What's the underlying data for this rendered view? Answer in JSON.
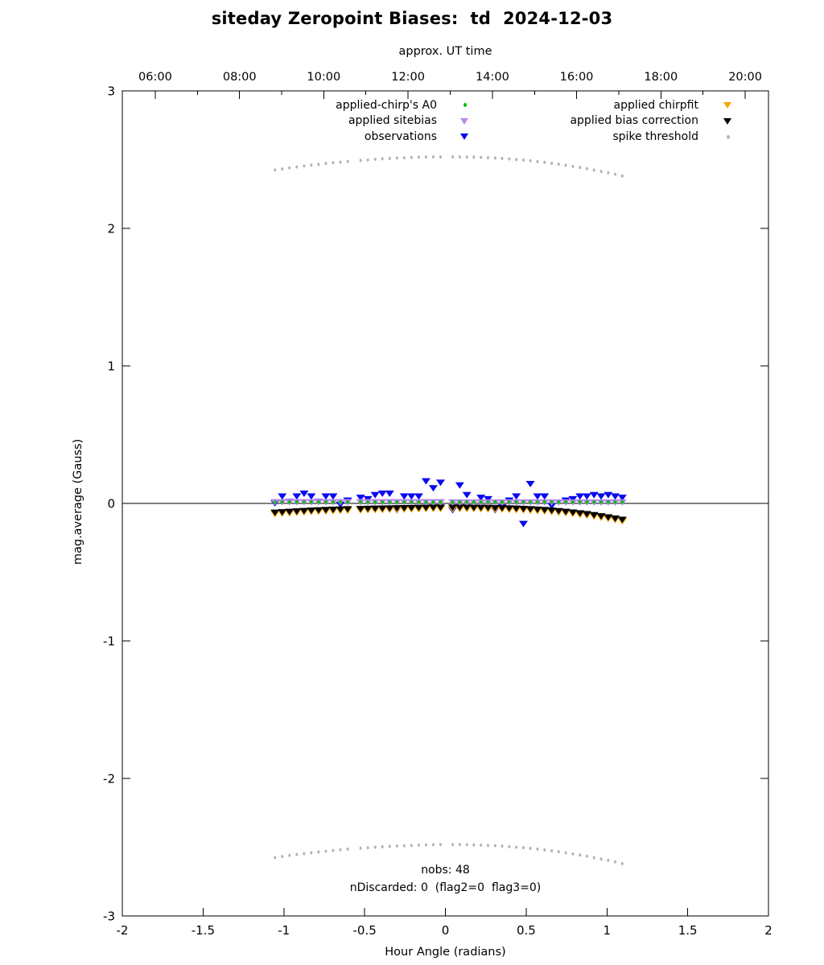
{
  "title": "siteday Zeropoint Biases:  td  2024-12-03",
  "axes": {
    "x2_label": "approx. UT time",
    "x_label": "Hour Angle (radians)",
    "y_label": "mag.average (Gauss)"
  },
  "annotations": {
    "nobs": "nobs: 48",
    "ndiscarded": "nDiscarded: 0  (flag2=0  flag3=0)"
  },
  "legend": {
    "columns": [
      {
        "items": [
          {
            "label": "applied-chirp's A0",
            "marker": "dot",
            "color": "#00c000"
          },
          {
            "label": "applied sitebias",
            "marker": "triangle-down",
            "color": "#bb88ee"
          },
          {
            "label": "observations",
            "marker": "triangle-down",
            "color": "#0a0af0"
          }
        ]
      },
      {
        "items": [
          {
            "label": "applied chirpfit",
            "marker": "triangle-down",
            "color": "#f7a707"
          },
          {
            "label": "applied bias correction",
            "marker": "triangle-down",
            "color": "#000000"
          },
          {
            "label": "spike threshold",
            "marker": "dot",
            "color": "#b3b3b3"
          }
        ]
      }
    ]
  },
  "chart_data": {
    "type": "scatter",
    "title": "siteday Zeropoint Biases:  td  2024-12-03",
    "xlabel": "Hour Angle (radians)",
    "x2label": "approx. UT time",
    "ylabel": "mag.average (Gauss)",
    "xlim": [
      -2,
      2
    ],
    "ylim": [
      -3,
      3
    ],
    "grid": false,
    "zero_line": true,
    "legend_position": "top-inside-two-columns",
    "x_ticks": [
      -2,
      -1.5,
      -1,
      -0.5,
      0,
      0.5,
      1,
      1.5,
      2
    ],
    "x_tick_labels": [
      "-2",
      "-1.5",
      "-1",
      "-0.5",
      "0",
      "0.5",
      "1",
      "1.5",
      "2"
    ],
    "y_ticks": [
      -3,
      -2,
      -1,
      0,
      1,
      2,
      3
    ],
    "y_tick_labels": [
      "-3",
      "-2",
      "-1",
      "0",
      "1",
      "2",
      "3"
    ],
    "x2_ticks": [
      {
        "label": "06:00",
        "ha": -1.796
      },
      {
        "label": "08:00",
        "ha": -1.274
      },
      {
        "label": "10:00",
        "ha": -0.753
      },
      {
        "label": "12:00",
        "ha": -0.231
      },
      {
        "label": "14:00",
        "ha": 0.291
      },
      {
        "label": "16:00",
        "ha": 0.812
      },
      {
        "label": "18:00",
        "ha": 1.334
      },
      {
        "label": "20:00",
        "ha": 1.856
      }
    ],
    "x2_minor_ha": [
      -1.535,
      -1.013,
      -0.492,
      0.03,
      0.552,
      1.073,
      1.595
    ],
    "stats": {
      "nobs": 48,
      "nDiscarded": 0,
      "flag2": 0,
      "flag3": 0
    },
    "ha": [
      -1.055,
      -1.01,
      -0.965,
      -0.92,
      -0.875,
      -0.83,
      -0.785,
      -0.74,
      -0.695,
      -0.65,
      -0.605,
      -0.525,
      -0.48,
      -0.435,
      -0.39,
      -0.345,
      -0.3,
      -0.255,
      -0.21,
      -0.165,
      -0.12,
      -0.075,
      -0.03,
      0.045,
      0.089,
      0.133,
      0.176,
      0.22,
      0.264,
      0.308,
      0.351,
      0.395,
      0.439,
      0.483,
      0.526,
      0.57,
      0.614,
      0.658,
      0.701,
      0.745,
      0.789,
      0.833,
      0.876,
      0.92,
      0.964,
      1.008,
      1.051,
      1.095
    ],
    "series": [
      {
        "name": "spike threshold",
        "marker": "dot",
        "color": "#b3b3b3",
        "values_upper": [
          2.425,
          2.432,
          2.44,
          2.447,
          2.454,
          2.46,
          2.466,
          2.472,
          2.477,
          2.482,
          2.487,
          2.494,
          2.498,
          2.502,
          2.506,
          2.509,
          2.512,
          2.514,
          2.516,
          2.518,
          2.519,
          2.52,
          2.52,
          2.52,
          2.52,
          2.519,
          2.518,
          2.516,
          2.514,
          2.512,
          2.509,
          2.505,
          2.501,
          2.497,
          2.492,
          2.486,
          2.48,
          2.474,
          2.467,
          2.459,
          2.451,
          2.443,
          2.434,
          2.424,
          2.414,
          2.404,
          2.393,
          2.381
        ],
        "values_lower": [
          -2.575,
          -2.568,
          -2.56,
          -2.553,
          -2.547,
          -2.541,
          -2.535,
          -2.529,
          -2.524,
          -2.519,
          -2.514,
          -2.508,
          -2.504,
          -2.5,
          -2.497,
          -2.494,
          -2.491,
          -2.489,
          -2.487,
          -2.485,
          -2.483,
          -2.482,
          -2.481,
          -2.481,
          -2.481,
          -2.482,
          -2.483,
          -2.485,
          -2.487,
          -2.489,
          -2.492,
          -2.496,
          -2.5,
          -2.504,
          -2.509,
          -2.514,
          -2.52,
          -2.526,
          -2.533,
          -2.541,
          -2.549,
          -2.557,
          -2.566,
          -2.576,
          -2.586,
          -2.596,
          -2.607,
          -2.619
        ]
      },
      {
        "name": "observations",
        "marker": "triangle-down",
        "color": "#0a0af0",
        "values": [
          0.0,
          0.05,
          0.01,
          0.05,
          0.07,
          0.05,
          0.01,
          0.05,
          0.05,
          -0.01,
          0.02,
          0.04,
          0.03,
          0.06,
          0.07,
          0.07,
          -0.05,
          0.05,
          0.05,
          0.05,
          0.16,
          0.11,
          0.15,
          -0.05,
          0.13,
          0.06,
          -0.04,
          0.04,
          0.03,
          -0.05,
          -0.03,
          0.02,
          0.05,
          -0.15,
          0.14,
          0.05,
          0.05,
          -0.02,
          -0.06,
          0.02,
          0.03,
          0.05,
          0.05,
          0.06,
          0.05,
          0.06,
          0.05,
          0.04
        ]
      },
      {
        "name": "applied chirpfit",
        "marker": "triangle-down",
        "color": "#f7a707",
        "values": [
          -0.078,
          -0.075,
          -0.072,
          -0.069,
          -0.066,
          -0.063,
          -0.061,
          -0.059,
          -0.057,
          -0.055,
          -0.053,
          -0.052,
          -0.05,
          -0.049,
          -0.048,
          -0.047,
          -0.046,
          -0.045,
          -0.044,
          -0.043,
          -0.042,
          -0.041,
          -0.041,
          -0.041,
          -0.041,
          -0.041,
          -0.042,
          -0.042,
          -0.043,
          -0.044,
          -0.045,
          -0.047,
          -0.049,
          -0.051,
          -0.053,
          -0.056,
          -0.059,
          -0.063,
          -0.067,
          -0.072,
          -0.077,
          -0.083,
          -0.089,
          -0.096,
          -0.104,
          -0.112,
          -0.121,
          -0.13
        ]
      },
      {
        "name": "applied bias correction",
        "marker": "triangle-down",
        "color": "#000000",
        "values": [
          -0.068,
          -0.065,
          -0.062,
          -0.059,
          -0.056,
          -0.053,
          -0.051,
          -0.049,
          -0.047,
          -0.045,
          -0.043,
          -0.042,
          -0.04,
          -0.039,
          -0.038,
          -0.037,
          -0.036,
          -0.035,
          -0.034,
          -0.033,
          -0.032,
          -0.031,
          -0.031,
          -0.031,
          -0.031,
          -0.031,
          -0.032,
          -0.032,
          -0.033,
          -0.034,
          -0.035,
          -0.037,
          -0.039,
          -0.041,
          -0.043,
          -0.046,
          -0.049,
          -0.053,
          -0.057,
          -0.062,
          -0.067,
          -0.073,
          -0.079,
          -0.086,
          -0.094,
          -0.102,
          -0.111,
          -0.12
        ]
      },
      {
        "name": "applied sitebias",
        "marker": "triangle-down",
        "color": "#bb88ee",
        "values": [
          0.008,
          0.008,
          0.008,
          0.008,
          0.008,
          0.008,
          0.008,
          0.008,
          0.008,
          0.008,
          0.008,
          0.008,
          0.008,
          0.008,
          0.008,
          0.008,
          0.008,
          0.008,
          0.008,
          0.008,
          0.008,
          0.008,
          0.008,
          0.006,
          0.006,
          0.006,
          0.006,
          0.006,
          0.006,
          0.006,
          0.006,
          0.006,
          0.006,
          0.006,
          0.006,
          0.006,
          0.006,
          0.006,
          0.006,
          0.006,
          0.006,
          0.006,
          0.006,
          0.006,
          0.006,
          0.006,
          0.006,
          0.006
        ]
      },
      {
        "name": "applied-chirp's A0",
        "marker": "dot",
        "color": "#00c000",
        "values": [
          0.01,
          0.01,
          0.01,
          0.01,
          0.01,
          0.01,
          0.01,
          0.01,
          0.01,
          0.01,
          0.01,
          0.01,
          0.01,
          0.01,
          0.01,
          0.01,
          0.01,
          0.01,
          0.01,
          0.01,
          0.01,
          0.01,
          0.01,
          0.01,
          0.01,
          0.01,
          0.01,
          0.01,
          0.01,
          0.01,
          0.01,
          0.01,
          0.01,
          0.01,
          0.01,
          0.01,
          0.01,
          0.01,
          0.01,
          0.01,
          0.01,
          0.01,
          0.01,
          0.01,
          0.01,
          0.01,
          0.01,
          0.01
        ]
      }
    ]
  }
}
